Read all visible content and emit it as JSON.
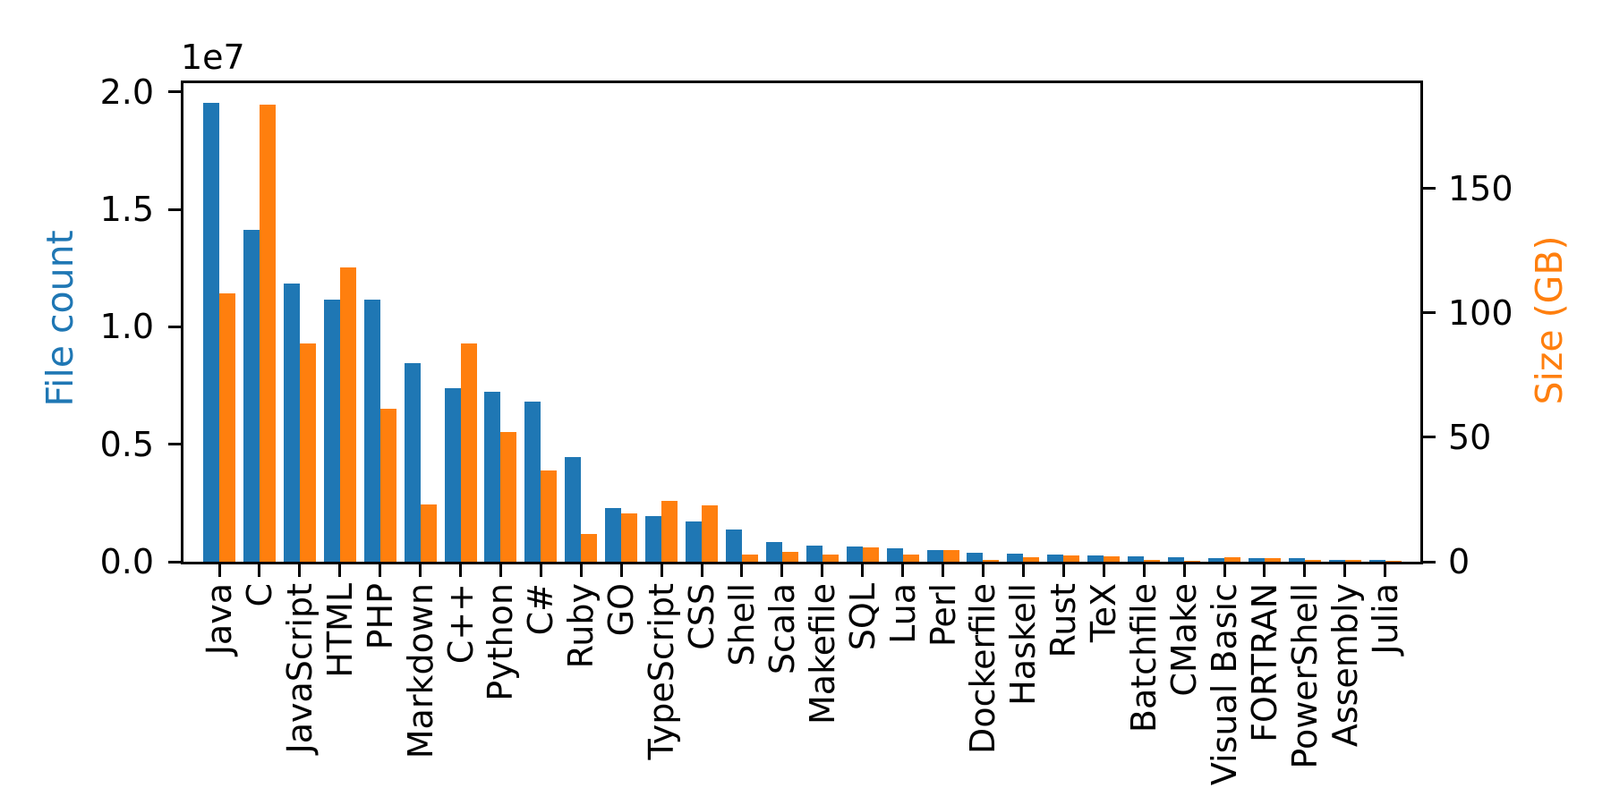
{
  "figure": {
    "background": "#ffffff",
    "spine_color": "#000000"
  },
  "chart_data": {
    "type": "bar",
    "title": "",
    "grid": false,
    "legend": "none",
    "categories": [
      "Java",
      "C",
      "JavaScript",
      "HTML",
      "PHP",
      "Markdown",
      "C++",
      "Python",
      "C#",
      "Ruby",
      "GO",
      "TypeScript",
      "CSS",
      "Shell",
      "Scala",
      "Makefile",
      "SQL",
      "Lua",
      "Perl",
      "Dockerfile",
      "Haskell",
      "Rust",
      "TeX",
      "Batchfile",
      "CMake",
      "Visual Basic",
      "FORTRAN",
      "PowerShell",
      "Assembly",
      "Julia"
    ],
    "series": [
      {
        "name": "File count",
        "axis": "left",
        "color": "#1f77b4",
        "values": [
          19550000,
          14140000,
          11840000,
          11180000,
          11180000,
          8460000,
          7380000,
          7230000,
          6810000,
          4470000,
          2270000,
          1940000,
          1730000,
          1390000,
          840000,
          680000,
          660000,
          580000,
          500000,
          370000,
          340000,
          320000,
          250000,
          240000,
          180000,
          160000,
          140000,
          140000,
          80000,
          60000
        ]
      },
      {
        "name": "Size (GB)",
        "axis": "right",
        "color": "#ff7f0e",
        "values": [
          107.7,
          183.8,
          87.8,
          118.1,
          61.4,
          23.1,
          87.7,
          52.0,
          36.8,
          11.0,
          19.3,
          24.6,
          22.7,
          3.0,
          3.9,
          2.9,
          5.7,
          2.8,
          4.7,
          0.7,
          1.9,
          2.7,
          2.2,
          0.7,
          0.5,
          1.9,
          1.6,
          0.7,
          0.8,
          0.3
        ]
      }
    ],
    "axes": {
      "left": {
        "label": "File count",
        "label_color": "#1f77b4",
        "offset_text": "1e7",
        "tick_labels": [
          "0.0",
          "0.5",
          "1.0",
          "1.5",
          "2.0"
        ],
        "tick_values": [
          0,
          5000000,
          10000000,
          15000000,
          20000000
        ],
        "range": [
          0,
          20380000
        ]
      },
      "right": {
        "label": "Size (GB)",
        "label_color": "#ff7f0e",
        "tick_labels": [
          "0",
          "50",
          "100",
          "150"
        ],
        "tick_values": [
          0,
          50,
          100,
          150
        ],
        "range": [
          0,
          192.3
        ]
      },
      "x": {
        "tick_label_rotation": 90
      }
    }
  }
}
